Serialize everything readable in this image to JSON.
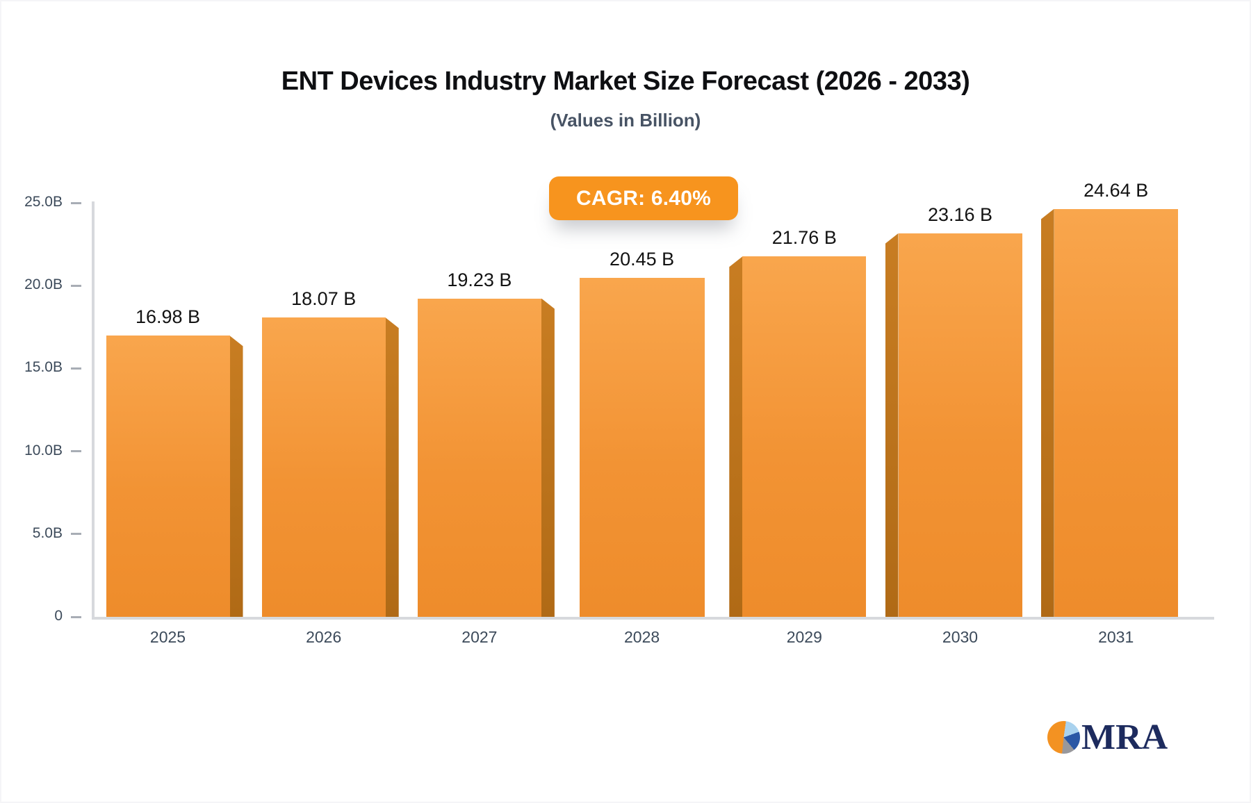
{
  "page": {
    "title": "ENT Devices Industry Market Size Forecast (2026 - 2033)",
    "subtitle": "(Values in Billion)"
  },
  "badge": {
    "label": "CAGR: 6.40%"
  },
  "logo": {
    "text": "MRA",
    "icon": "pie-chart-logo-icon"
  },
  "colors": {
    "bar_face": "#f29334",
    "bar_side": "#bf741d",
    "badge_orange": "#f7941e",
    "axis_line": "#d7d9dd",
    "axis_text": "#3c4a5a",
    "value_text": "#131313",
    "logo_navy": "#1d2b5e",
    "logo_pie_lightblue": "#a9d2ee",
    "logo_pie_blue": "#2a57a5",
    "logo_pie_gray": "#98989c",
    "logo_pie_orange": "#f39222"
  },
  "chart_data": {
    "type": "bar",
    "title": "ENT Devices Industry Market Size Forecast (2026 - 2033)",
    "subtitle": "(Values in Billion)",
    "categories": [
      "2025",
      "2026",
      "2027",
      "2028",
      "2029",
      "2030",
      "2031"
    ],
    "values": [
      16.98,
      18.07,
      19.23,
      20.45,
      21.76,
      23.16,
      24.64
    ],
    "value_labels": [
      "16.98 B",
      "18.07 B",
      "19.23 B",
      "20.45 B",
      "21.76 B",
      "23.16 B",
      "24.64 B"
    ],
    "cagr_label": "CAGR: 6.40%",
    "y_ticks": [
      "25.0B",
      "20.0B",
      "15.0B",
      "10.0B",
      "5.0B",
      "0"
    ],
    "ylim": [
      0,
      25
    ],
    "xlabel": "",
    "ylabel": "",
    "grid": false,
    "legend": false,
    "bar_style": "3d-pseudo",
    "bar_color": "#f29334"
  }
}
